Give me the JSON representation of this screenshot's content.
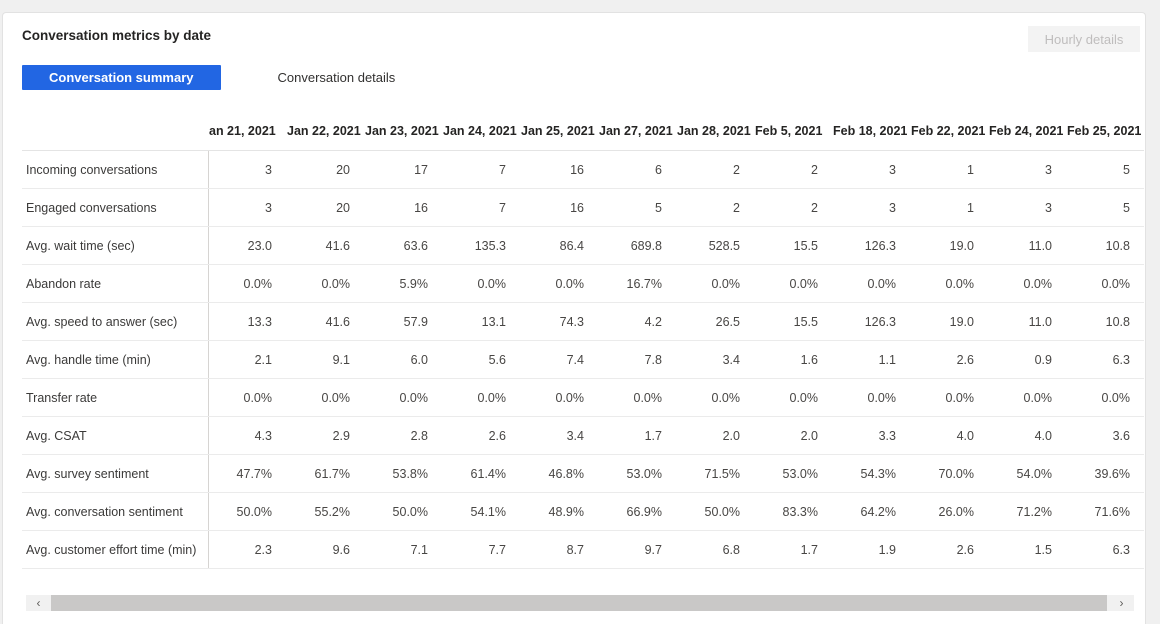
{
  "header": {
    "title": "Conversation metrics by date",
    "hourly_details_label": "Hourly details"
  },
  "tabs": [
    {
      "label": "Conversation summary",
      "active": true
    },
    {
      "label": "Conversation details",
      "active": false
    }
  ],
  "table": {
    "columns": [
      "an 21, 2021",
      "Jan 22, 2021",
      "Jan 23, 2021",
      "Jan 24, 2021",
      "Jan 25, 2021",
      "Jan 27, 2021",
      "Jan 28, 2021",
      "Feb 5, 2021",
      "Feb 18, 2021",
      "Feb 22, 2021",
      "Feb 24, 2021",
      "Feb 25, 2021"
    ],
    "rows": [
      {
        "label": "Incoming conversations",
        "values": [
          "3",
          "20",
          "17",
          "7",
          "16",
          "6",
          "2",
          "2",
          "3",
          "1",
          "3",
          "5"
        ]
      },
      {
        "label": "Engaged conversations",
        "values": [
          "3",
          "20",
          "16",
          "7",
          "16",
          "5",
          "2",
          "2",
          "3",
          "1",
          "3",
          "5"
        ]
      },
      {
        "label": "Avg. wait time (sec)",
        "values": [
          "23.0",
          "41.6",
          "63.6",
          "135.3",
          "86.4",
          "689.8",
          "528.5",
          "15.5",
          "126.3",
          "19.0",
          "11.0",
          "10.8"
        ]
      },
      {
        "label": "Abandon rate",
        "values": [
          "0.0%",
          "0.0%",
          "5.9%",
          "0.0%",
          "0.0%",
          "16.7%",
          "0.0%",
          "0.0%",
          "0.0%",
          "0.0%",
          "0.0%",
          "0.0%"
        ]
      },
      {
        "label": "Avg. speed to answer (sec)",
        "values": [
          "13.3",
          "41.6",
          "57.9",
          "13.1",
          "74.3",
          "4.2",
          "26.5",
          "15.5",
          "126.3",
          "19.0",
          "11.0",
          "10.8"
        ]
      },
      {
        "label": "Avg. handle time (min)",
        "values": [
          "2.1",
          "9.1",
          "6.0",
          "5.6",
          "7.4",
          "7.8",
          "3.4",
          "1.6",
          "1.1",
          "2.6",
          "0.9",
          "6.3"
        ]
      },
      {
        "label": "Transfer rate",
        "values": [
          "0.0%",
          "0.0%",
          "0.0%",
          "0.0%",
          "0.0%",
          "0.0%",
          "0.0%",
          "0.0%",
          "0.0%",
          "0.0%",
          "0.0%",
          "0.0%"
        ]
      },
      {
        "label": "Avg. CSAT",
        "values": [
          "4.3",
          "2.9",
          "2.8",
          "2.6",
          "3.4",
          "1.7",
          "2.0",
          "2.0",
          "3.3",
          "4.0",
          "4.0",
          "3.6"
        ]
      },
      {
        "label": "Avg. survey sentiment",
        "values": [
          "47.7%",
          "61.7%",
          "53.8%",
          "61.4%",
          "46.8%",
          "53.0%",
          "71.5%",
          "53.0%",
          "54.3%",
          "70.0%",
          "54.0%",
          "39.6%"
        ]
      },
      {
        "label": "Avg. conversation sentiment",
        "values": [
          "50.0%",
          "55.2%",
          "50.0%",
          "54.1%",
          "48.9%",
          "66.9%",
          "50.0%",
          "83.3%",
          "64.2%",
          "26.0%",
          "71.2%",
          "71.6%"
        ]
      },
      {
        "label": "Avg. customer effort time (min)",
        "values": [
          "2.3",
          "9.6",
          "7.1",
          "7.7",
          "8.7",
          "9.7",
          "6.8",
          "1.7",
          "1.9",
          "2.6",
          "1.5",
          "6.3"
        ]
      }
    ]
  },
  "scrollbar": {
    "left_arrow": "‹",
    "right_arrow": "›"
  },
  "colors": {
    "accent_blue": "#2266e3",
    "disabled_button_bg": "#f3f3f3"
  }
}
